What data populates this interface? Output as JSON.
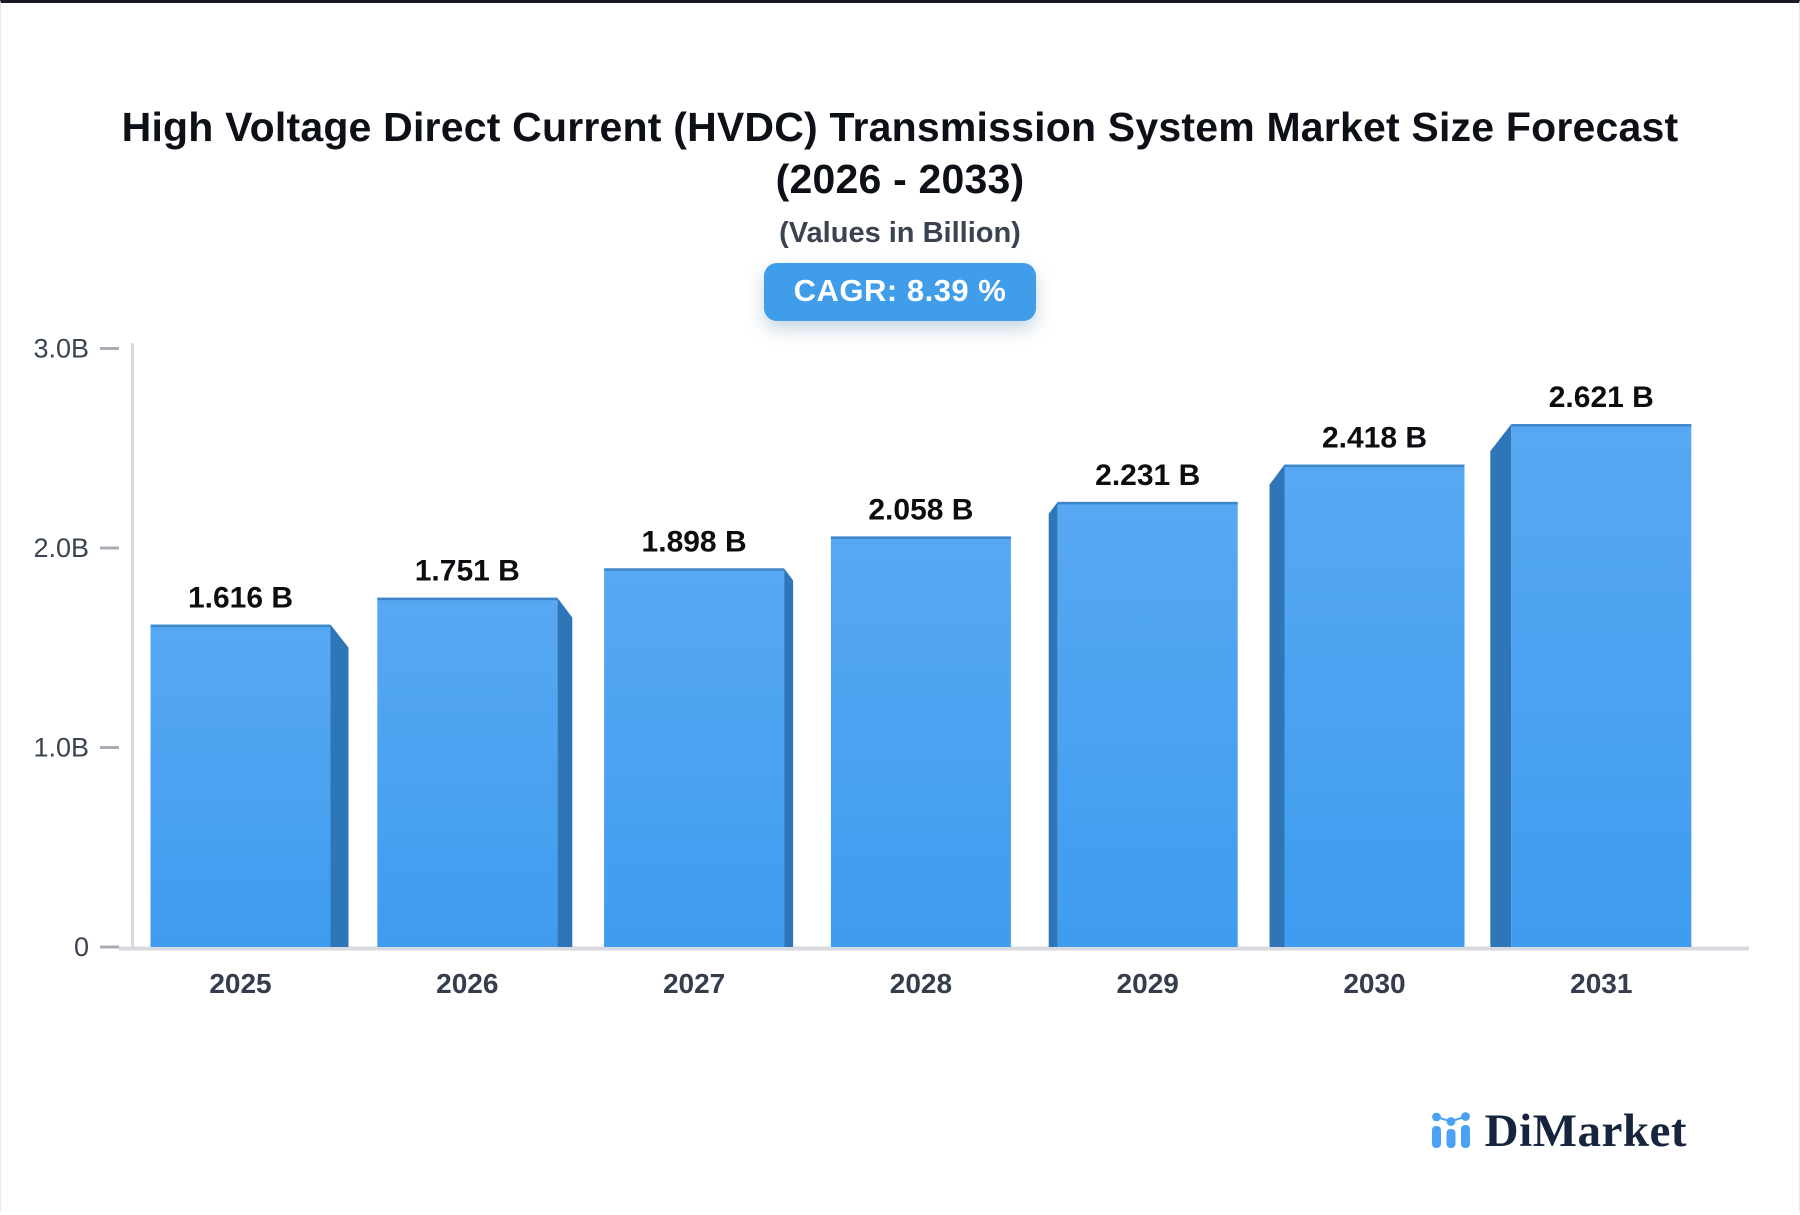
{
  "colors": {
    "accent_badge": "#3f9dea",
    "bar_face_top": "#57a8f2",
    "bar_face_bottom": "#3f9cef",
    "bar_side": "#2e76b7",
    "bar_top_edge": "#3e86c9",
    "axis_line": "#d8dadf",
    "tick_dash": "#a8acb5",
    "logo_icon": "#4ba2f4",
    "logo_text": "#16243d"
  },
  "header": {
    "title_line1": "High Voltage Direct Current (HVDC) Transmission System Market Size Forecast",
    "title_line2": "(2026 - 2033)",
    "subtitle": "(Values in Billion)",
    "cagr_label": "CAGR: 8.39 %"
  },
  "footer": {
    "brand_name": "DiMarket"
  },
  "chart_data": {
    "type": "bar",
    "title": "High Voltage Direct Current (HVDC) Transmission System Market Size Forecast (2026 - 2033)",
    "subtitle": "(Values in Billion)",
    "cagr_percent": 8.39,
    "categories": [
      "2025",
      "2026",
      "2027",
      "2028",
      "2029",
      "2030",
      "2031"
    ],
    "values": [
      1.616,
      1.751,
      1.898,
      2.058,
      2.231,
      2.418,
      2.621
    ],
    "value_labels": [
      "1.616 B",
      "1.751 B",
      "1.898 B",
      "2.058 B",
      "2.231 B",
      "2.418 B",
      "2.621 B"
    ],
    "unit": "Billion",
    "xlabel": "",
    "ylabel": "",
    "ylim": [
      0,
      3
    ],
    "yticks": [
      {
        "v": 0,
        "label": "0"
      },
      {
        "v": 1,
        "label": "1.0B"
      },
      {
        "v": 2,
        "label": "2.0B"
      },
      {
        "v": 3,
        "label": "3.0B"
      }
    ],
    "grid": false,
    "legend": "none",
    "bar_style": "3d-beveled"
  }
}
